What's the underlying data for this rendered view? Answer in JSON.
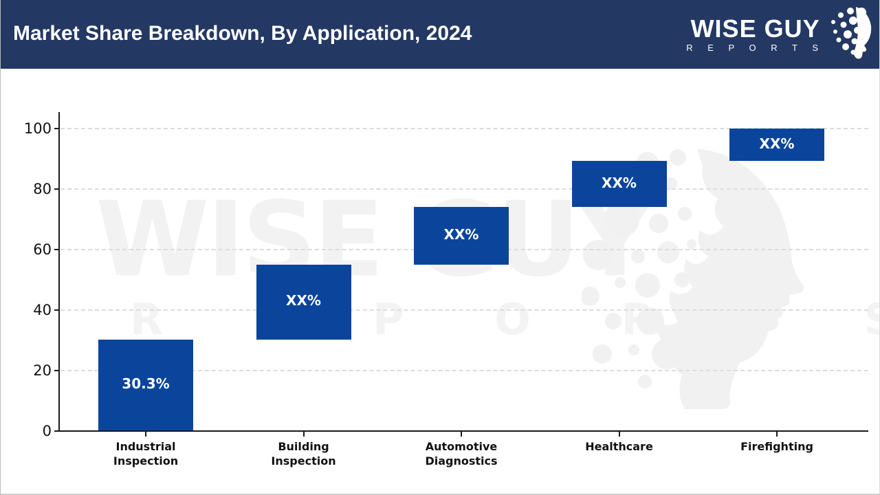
{
  "header": {
    "title": "Market Share Breakdown, By Application, 2024"
  },
  "brand": {
    "name": "WISE GUY",
    "tagline": "R E P O R T S"
  },
  "watermark": {
    "line1": "WISE GUY",
    "line2": "R E P O R T S"
  },
  "colors": {
    "header_bg": "#233862",
    "bar": "#0b459b",
    "grid": "#dcdcdc",
    "axis": "#000000",
    "bar_label_text": "#ffffff",
    "watermark": "#f2f2f2"
  },
  "chart_data": {
    "type": "bar",
    "subtype": "waterfall",
    "title": "Market Share Breakdown, By Application, 2024",
    "xlabel": "",
    "ylabel": "",
    "categories": [
      "Industrial Inspection",
      "Building Inspection",
      "Automotive Diagnostics",
      "Healthcare",
      "Firefighting"
    ],
    "category_lines": [
      [
        "Industrial",
        "Inspection"
      ],
      [
        "Building",
        "Inspection"
      ],
      [
        "Automotive",
        "Diagnostics"
      ],
      [
        "Healthcare"
      ],
      [
        "Firefighting"
      ]
    ],
    "segments": [
      {
        "category": "Industrial Inspection",
        "start": 0,
        "end": 30.3,
        "label": "30.3%"
      },
      {
        "category": "Building Inspection",
        "start": 30.3,
        "end": 55,
        "label": "XX%"
      },
      {
        "category": "Automotive Diagnostics",
        "start": 55,
        "end": 74,
        "label": "XX%"
      },
      {
        "category": "Healthcare",
        "start": 74,
        "end": 89.3,
        "label": "XX%"
      },
      {
        "category": "Firefighting",
        "start": 89.3,
        "end": 100,
        "label": "XX%"
      }
    ],
    "yticks": [
      0,
      20,
      40,
      60,
      80,
      100
    ],
    "ylim": [
      0,
      105.5
    ],
    "grid": "horizontal-dashed",
    "legend": "none"
  }
}
